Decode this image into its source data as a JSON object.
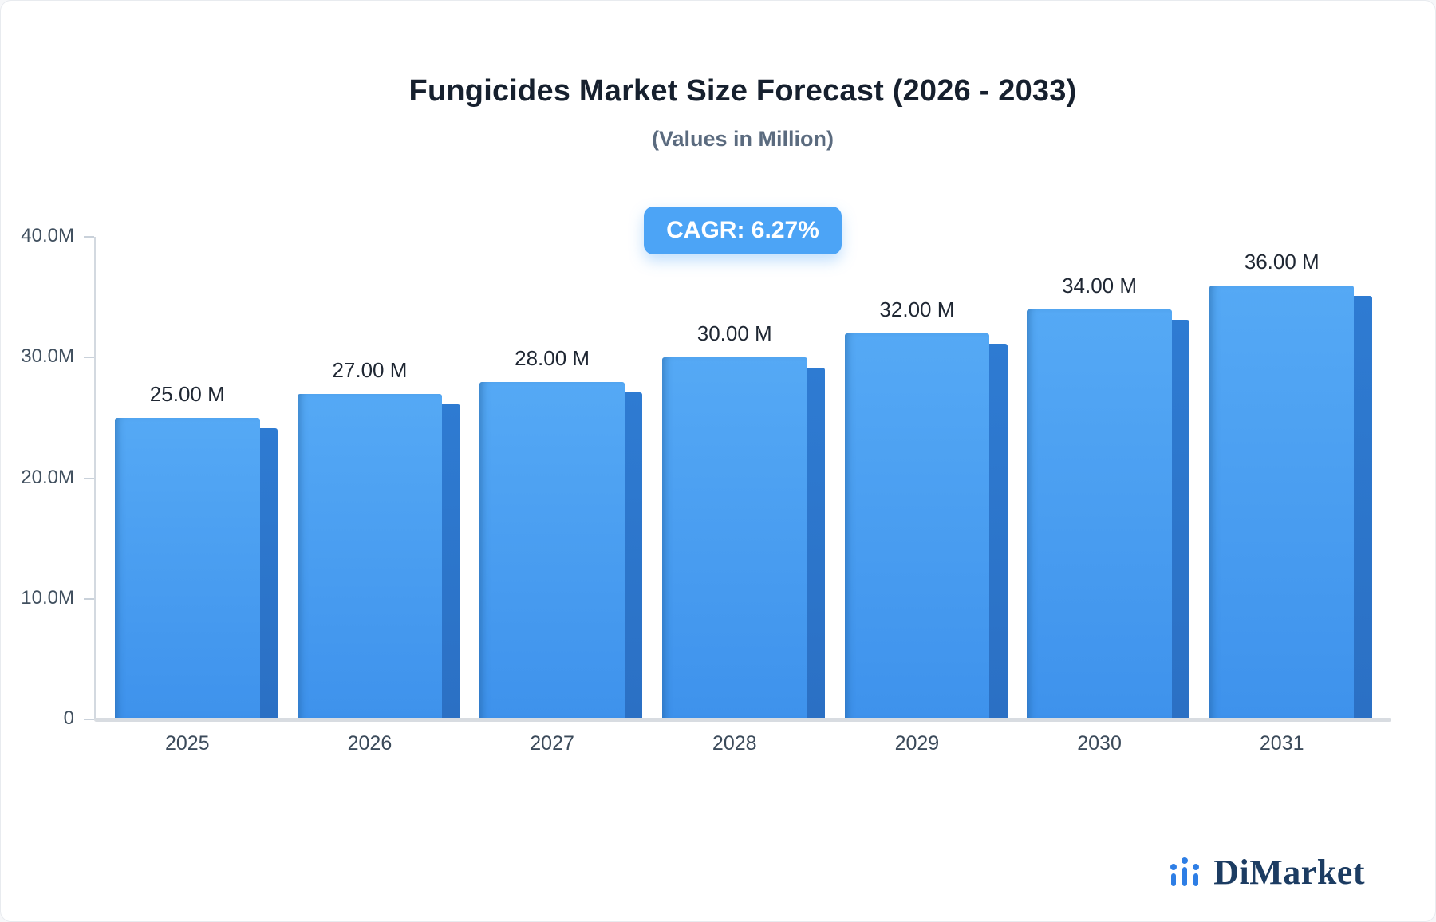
{
  "header": {
    "title": "Fungicides Market Size Forecast (2026 - 2033)",
    "subtitle": "(Values in Million)"
  },
  "badge": {
    "label": "CAGR: 6.27%"
  },
  "chart_data": {
    "type": "bar",
    "title": "Fungicides Market Size Forecast (2026 - 2033)",
    "subtitle": "(Values in Million)",
    "unit": "Million",
    "categories": [
      "2025",
      "2026",
      "2027",
      "2028",
      "2029",
      "2030",
      "2031"
    ],
    "values": [
      25,
      27,
      28,
      30,
      32,
      34,
      36
    ],
    "value_labels": [
      "25.00 M",
      "27.00 M",
      "28.00 M",
      "30.00 M",
      "32.00 M",
      "34.00 M",
      "36.00 M"
    ],
    "ylim": [
      0,
      40
    ],
    "yticks": [
      {
        "value": 0,
        "label": "0"
      },
      {
        "value": 10,
        "label": "10.0M"
      },
      {
        "value": 20,
        "label": "20.0M"
      },
      {
        "value": 30,
        "label": "30.0M"
      },
      {
        "value": 40,
        "label": "40.0M"
      }
    ],
    "grid": false,
    "legend": "none",
    "bar_color": "#3E92EC",
    "bar_side_color": "#2B70C4",
    "badge": "CAGR: 6.27%"
  },
  "footer": {
    "brand": "DiMarket"
  },
  "colors": {
    "accent": "#4CA4F6",
    "title": "#16202e",
    "subtitle": "#5b6b7f",
    "brand": "#1c3c62"
  }
}
